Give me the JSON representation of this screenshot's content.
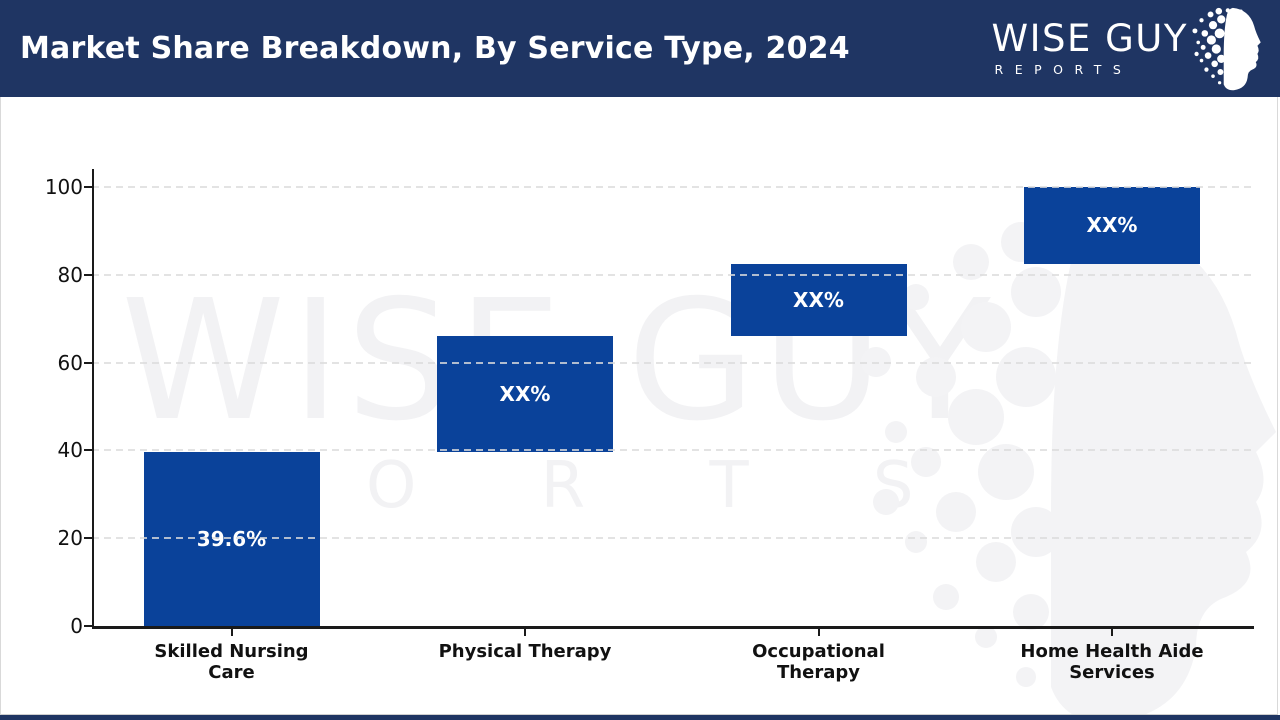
{
  "header": {
    "title": "Market Share Breakdown, By Service Type, 2024",
    "bg_color": "#1f3563",
    "logo": {
      "line1": "WISE GUY",
      "line2": "REPORTS"
    }
  },
  "watermark": {
    "line1": "WISE GUY",
    "line2": "P O R T S"
  },
  "chart_data": {
    "type": "bar",
    "subtype": "waterfall-stacked-breakdown",
    "title": "Market Share Breakdown, By Service Type, 2024",
    "categories": [
      "Skilled Nursing Care",
      "Physical Therapy",
      "Occupational Therapy",
      "Home Health Aide Services"
    ],
    "category_lines": [
      [
        "Skilled Nursing",
        "Care"
      ],
      [
        "Physical Therapy"
      ],
      [
        "Occupational",
        "Therapy"
      ],
      [
        "Home Health Aide",
        "Services"
      ]
    ],
    "segments": [
      {
        "category": "Skilled Nursing Care",
        "label": "39.6%",
        "start": 0,
        "end": 39.6
      },
      {
        "category": "Physical Therapy",
        "label": "XX%",
        "start": 39.6,
        "end": 66.0
      },
      {
        "category": "Occupational Therapy",
        "label": "XX%",
        "start": 66.0,
        "end": 82.5
      },
      {
        "category": "Home Health Aide Services",
        "label": "XX%",
        "start": 82.5,
        "end": 100.0
      }
    ],
    "yticks": [
      0,
      20,
      40,
      60,
      80,
      100
    ],
    "ylim": [
      0,
      104
    ],
    "xlabel": "",
    "ylabel": "",
    "legend": "none",
    "grid": "horizontal-dashed",
    "bar_color": "#0a429a",
    "bar_label_color": "#ffffff",
    "axis_color": "#1a1a1a"
  }
}
